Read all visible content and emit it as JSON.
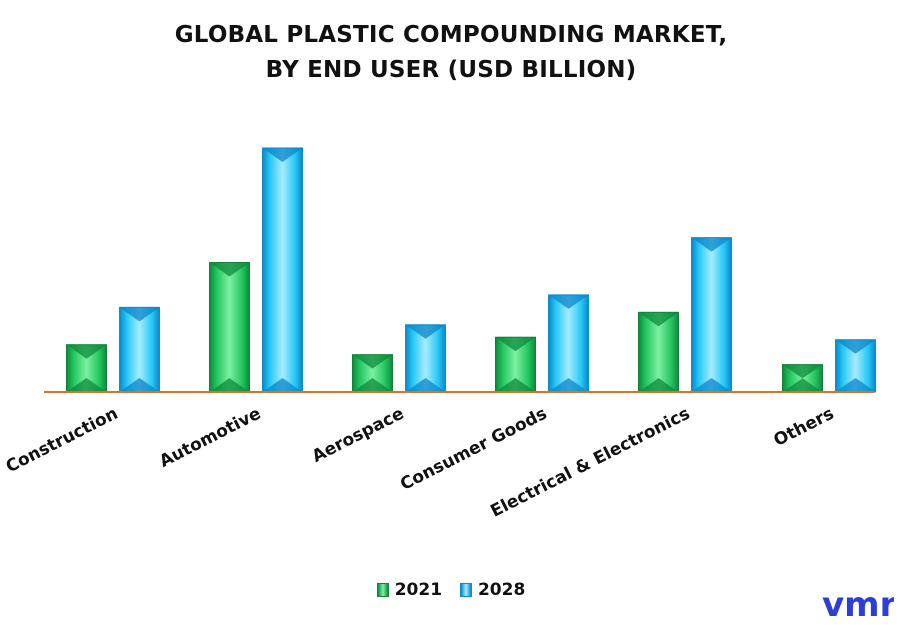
{
  "chart_data": {
    "type": "bar",
    "title": "GLOBAL PLASTIC COMPOUNDING MARKET,",
    "subtitle": "BY END USER (USD BILLION)",
    "categories": [
      "Construction",
      "Automotive",
      "Aerospace",
      "Consumer Goods",
      "Electrical & Electronics",
      "Others"
    ],
    "series": [
      {
        "name": "2021",
        "values": [
          1.9,
          5.2,
          1.5,
          2.2,
          3.2,
          1.1
        ]
      },
      {
        "name": "2028",
        "values": [
          3.4,
          9.8,
          2.7,
          3.9,
          6.2,
          2.1
        ]
      }
    ],
    "ylim": [
      0,
      10
    ],
    "grid": false,
    "legend": "bottom",
    "colors": {
      "2021": {
        "main": "#22c55e",
        "dark": "#0f8a3c",
        "light": "#7ef0a2",
        "edge": "#14803a"
      },
      "2028": {
        "main": "#25c7f5",
        "dark": "#0a86c9",
        "light": "#a6ecff",
        "edge": "#0b8fce"
      },
      "baseline": "#d2762e"
    }
  },
  "logo": {
    "icon": "vmr-logo-icon",
    "text": "vmr",
    "color": "#2b3fd6"
  }
}
